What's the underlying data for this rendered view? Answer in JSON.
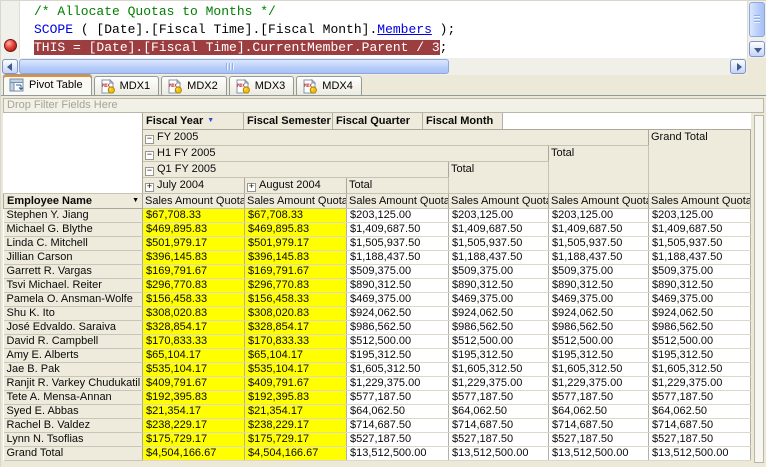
{
  "code_editor": {
    "comment_line": "/* Allocate Quotas to Months */",
    "scope_keyword": "SCOPE",
    "scope_body": " ( [Date].[Fiscal Time].[Fiscal Month].",
    "scope_members": "Members",
    "scope_tail": " );",
    "this_highlighted_text": "THIS = [Date].[Fiscal Time].CurrentMember.Parent / 3",
    "this_tail": ";"
  },
  "tabs": [
    {
      "label": "Pivot Table",
      "icon": "pivot-table-icon",
      "active": true
    },
    {
      "label": "MDX1",
      "icon": "mdx-query-icon",
      "active": false
    },
    {
      "label": "MDX2",
      "icon": "mdx-query-icon",
      "active": false
    },
    {
      "label": "MDX3",
      "icon": "mdx-query-icon",
      "active": false
    },
    {
      "label": "MDX4",
      "icon": "mdx-query-icon",
      "active": false
    }
  ],
  "pivot_table": {
    "drop_filter_text": "Drop Filter Fields Here",
    "column_fields": [
      {
        "label": "Fiscal Year",
        "has_dropdown": true
      },
      {
        "label": "Fiscal Semester",
        "has_dropdown": false
      },
      {
        "label": "Fiscal Quarter",
        "has_dropdown": false
      },
      {
        "label": "Fiscal Month",
        "has_dropdown": false
      }
    ],
    "row_field_label": "Employee Name",
    "measure_label": "Sales Amount Quota",
    "column_groups": {
      "year": "FY 2005",
      "semester": "H1 FY 2005",
      "quarter": "Q1 FY 2005",
      "months": [
        "July 2004",
        "August 2004"
      ],
      "total_label": "Total",
      "grand_total_label": "Grand Total"
    },
    "rows": [
      {
        "name": "Stephen Y. Jiang",
        "values": [
          "$67,708.33",
          "$67,708.33",
          "$203,125.00",
          "$203,125.00",
          "$203,125.00",
          "$203,125.00"
        ]
      },
      {
        "name": "Michael G. Blythe",
        "values": [
          "$469,895.83",
          "$469,895.83",
          "$1,409,687.50",
          "$1,409,687.50",
          "$1,409,687.50",
          "$1,409,687.50"
        ]
      },
      {
        "name": "Linda C. Mitchell",
        "values": [
          "$501,979.17",
          "$501,979.17",
          "$1,505,937.50",
          "$1,505,937.50",
          "$1,505,937.50",
          "$1,505,937.50"
        ]
      },
      {
        "name": "Jillian Carson",
        "values": [
          "$396,145.83",
          "$396,145.83",
          "$1,188,437.50",
          "$1,188,437.50",
          "$1,188,437.50",
          "$1,188,437.50"
        ]
      },
      {
        "name": "Garrett R. Vargas",
        "values": [
          "$169,791.67",
          "$169,791.67",
          "$509,375.00",
          "$509,375.00",
          "$509,375.00",
          "$509,375.00"
        ]
      },
      {
        "name": "Tsvi Michael. Reiter",
        "values": [
          "$296,770.83",
          "$296,770.83",
          "$890,312.50",
          "$890,312.50",
          "$890,312.50",
          "$890,312.50"
        ]
      },
      {
        "name": "Pamela O. Ansman-Wolfe",
        "values": [
          "$156,458.33",
          "$156,458.33",
          "$469,375.00",
          "$469,375.00",
          "$469,375.00",
          "$469,375.00"
        ]
      },
      {
        "name": "Shu K. Ito",
        "values": [
          "$308,020.83",
          "$308,020.83",
          "$924,062.50",
          "$924,062.50",
          "$924,062.50",
          "$924,062.50"
        ]
      },
      {
        "name": "José Edvaldo. Saraiva",
        "values": [
          "$328,854.17",
          "$328,854.17",
          "$986,562.50",
          "$986,562.50",
          "$986,562.50",
          "$986,562.50"
        ]
      },
      {
        "name": "David R. Campbell",
        "values": [
          "$170,833.33",
          "$170,833.33",
          "$512,500.00",
          "$512,500.00",
          "$512,500.00",
          "$512,500.00"
        ]
      },
      {
        "name": "Amy E. Alberts",
        "values": [
          "$65,104.17",
          "$65,104.17",
          "$195,312.50",
          "$195,312.50",
          "$195,312.50",
          "$195,312.50"
        ]
      },
      {
        "name": "Jae B. Pak",
        "values": [
          "$535,104.17",
          "$535,104.17",
          "$1,605,312.50",
          "$1,605,312.50",
          "$1,605,312.50",
          "$1,605,312.50"
        ]
      },
      {
        "name": "Ranjit R. Varkey Chudukatil",
        "values": [
          "$409,791.67",
          "$409,791.67",
          "$1,229,375.00",
          "$1,229,375.00",
          "$1,229,375.00",
          "$1,229,375.00"
        ]
      },
      {
        "name": "Tete A. Mensa-Annan",
        "values": [
          "$192,395.83",
          "$192,395.83",
          "$577,187.50",
          "$577,187.50",
          "$577,187.50",
          "$577,187.50"
        ]
      },
      {
        "name": "Syed E. Abbas",
        "values": [
          "$21,354.17",
          "$21,354.17",
          "$64,062.50",
          "$64,062.50",
          "$64,062.50",
          "$64,062.50"
        ]
      },
      {
        "name": "Rachel B. Valdez",
        "values": [
          "$238,229.17",
          "$238,229.17",
          "$714,687.50",
          "$714,687.50",
          "$714,687.50",
          "$714,687.50"
        ]
      },
      {
        "name": "Lynn N. Tsoflias",
        "values": [
          "$175,729.17",
          "$175,729.17",
          "$527,187.50",
          "$527,187.50",
          "$527,187.50",
          "$527,187.50"
        ]
      },
      {
        "name": "Grand Total",
        "type": "grand_total",
        "values": [
          "$4,504,166.67",
          "$4,504,166.67",
          "$13,512,500.00",
          "$13,512,500.00",
          "$13,512,500.00",
          "$13,512,500.00"
        ]
      }
    ]
  },
  "glyphs": {
    "collapse": "−",
    "expand": "+",
    "dropdown": "▼"
  },
  "colors": {
    "quota_highlight_yellow": "#FFFF00",
    "debug_line_maroon": "#9C3E40",
    "breakpoint_red": "#CC2418",
    "active_tab_orange": "#E78F35",
    "keyword_blue": "#0000E0",
    "comment_green": "#007D00",
    "panel_beige": "#ECE9D8"
  }
}
